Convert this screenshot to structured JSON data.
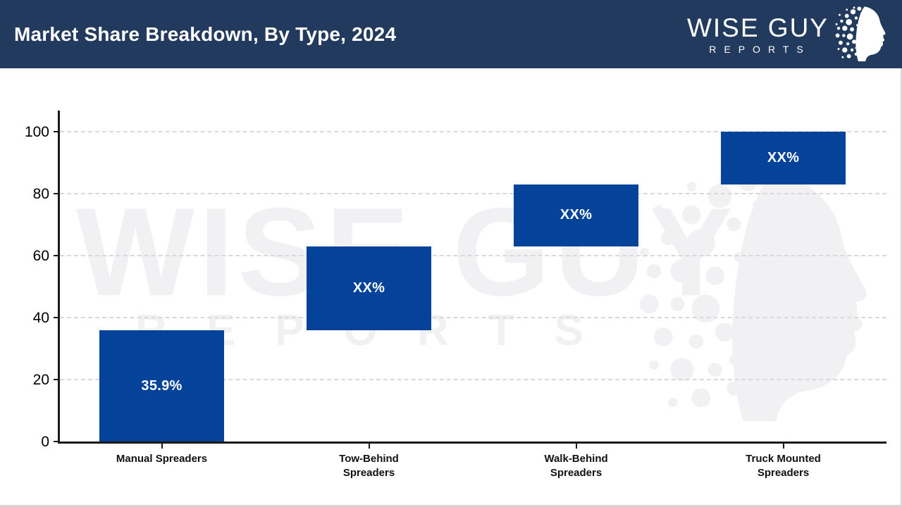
{
  "header": {
    "title": "Market Share Breakdown, By Type, 2024",
    "logo": {
      "line1": "WISE GUY",
      "line2": "REPORTS"
    }
  },
  "watermark": {
    "line1": "WISE GUY",
    "line2": "REPORTS"
  },
  "colors": {
    "header_bg": "#233a5f",
    "bar_fill": "#05439b",
    "bar_label": "#ffffff",
    "grid": "#d9d9d9",
    "axis": "#1a1a1a",
    "watermark": "#f1f1f4"
  },
  "chart_data": {
    "type": "bar",
    "subtype": "floating-waterfall",
    "title": "Market Share Breakdown, By Type, 2024",
    "xlabel": "",
    "ylabel": "",
    "ylim": [
      0,
      106
    ],
    "yticks": [
      0,
      20,
      40,
      60,
      80,
      100
    ],
    "grid": "horizontal-dashed",
    "legend": "none",
    "categories": [
      "Manual Spreaders",
      "Tow-Behind\nSpreaders",
      "Walk-Behind\nSpreaders",
      "Truck Mounted\nSpreaders"
    ],
    "series": [
      {
        "name": "Market Share",
        "segments": [
          {
            "category": "Manual Spreaders",
            "start": 0,
            "end": 35.9,
            "label": "35.9%"
          },
          {
            "category": "Tow-Behind Spreaders",
            "start": 35.9,
            "end": 63,
            "label": "XX%"
          },
          {
            "category": "Walk-Behind Spreaders",
            "start": 63,
            "end": 83,
            "label": "XX%"
          },
          {
            "category": "Truck Mounted Spreaders",
            "start": 83,
            "end": 100,
            "label": "XX%"
          }
        ]
      }
    ],
    "bar_color": "#05439b",
    "label_color": "#ffffff"
  }
}
